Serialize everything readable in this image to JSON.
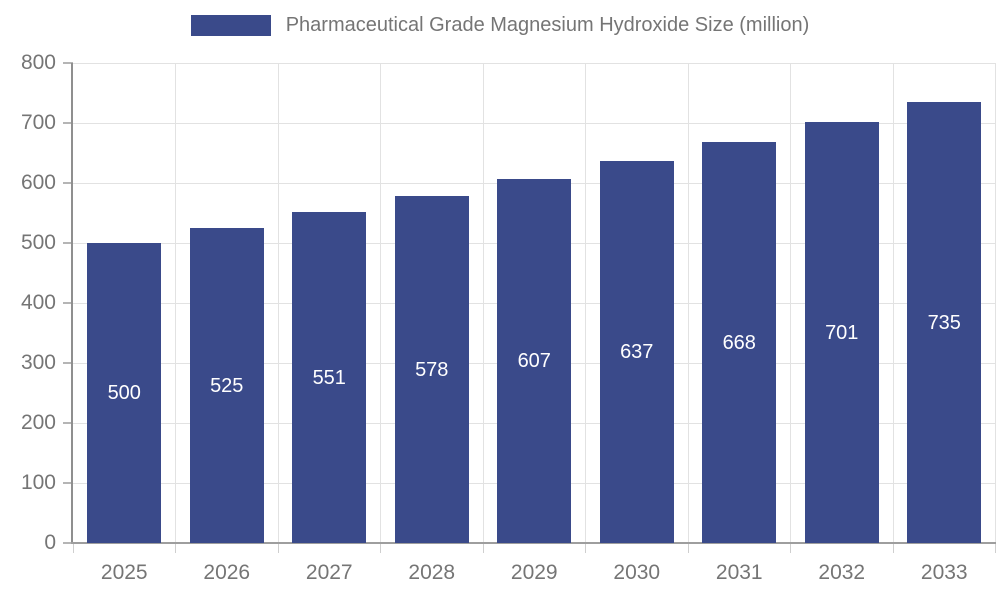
{
  "legend": {
    "label": "Pharmaceutical Grade Magnesium Hydroxide Size (million)"
  },
  "chart_data": {
    "type": "bar",
    "title": "Pharmaceutical Grade Magnesium Hydroxide Size (million)",
    "categories": [
      "2025",
      "2026",
      "2027",
      "2028",
      "2029",
      "2030",
      "2031",
      "2032",
      "2033"
    ],
    "values": [
      500,
      525,
      551,
      578,
      607,
      637,
      668,
      701,
      735
    ],
    "xlabel": "",
    "ylabel": "",
    "ylim": [
      0,
      800
    ],
    "ytick_step": 100,
    "grid": true,
    "legend_position": "top",
    "colors": {
      "bar": "#3A4A8A",
      "value_label": "#ffffff",
      "axis_text": "#757575",
      "gridline": "#e2e2e2",
      "axis_line": "#9e9e9e",
      "background": "#ffffff"
    }
  }
}
